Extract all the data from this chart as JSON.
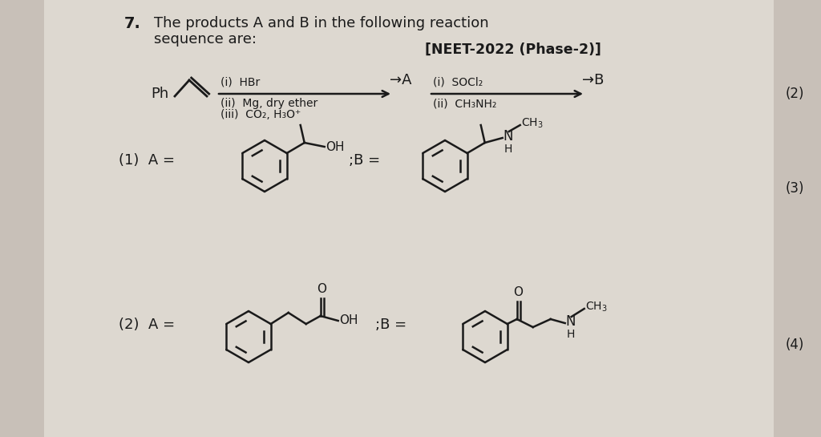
{
  "bg": "#c8c0b8",
  "paper_bg": "#e8e0d8",
  "fc": "#1a1a1a",
  "fig_w": 10.24,
  "fig_h": 5.45,
  "dpi": 100,
  "title_num": "7.",
  "line1": "The products A and B in the following reaction",
  "line2": "sequence are:",
  "neet": "[NEET-2022 (Phase-2)]",
  "lbl_i_hbr": "(i)  HBr",
  "lbl_ii_mg": "(ii)  Mg, dry ether",
  "lbl_iii_co2": "(iii)  CO₂, H₃O⁺",
  "lbl_soc": "(i)  SOCl₂",
  "lbl_ch3nh2": "(ii)  CH₃NH₂",
  "opt1": "(1)  A =",
  "opt1sep": ";B =",
  "opt2": "(2)  A =",
  "opt2sep": ";B =",
  "n2": "(2)",
  "n3": "(3)",
  "n4": "(4)"
}
